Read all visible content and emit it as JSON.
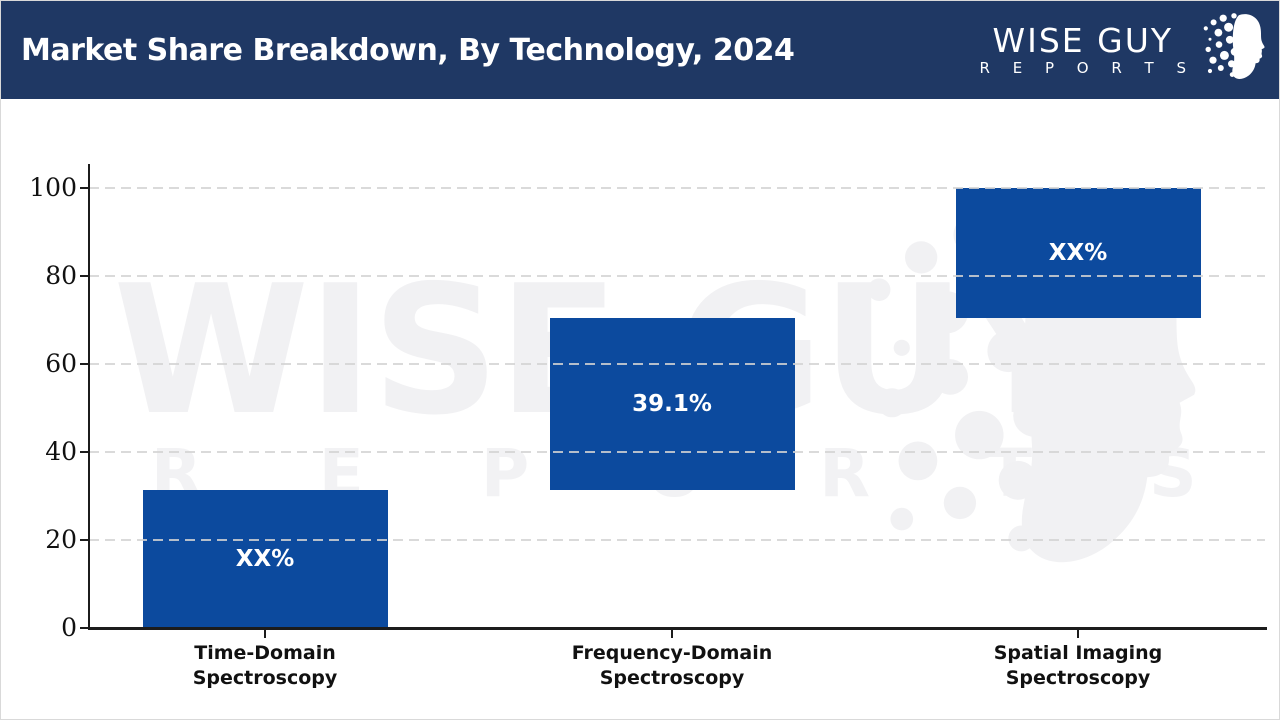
{
  "header": {
    "title": "Market Share Breakdown, By Technology, 2024",
    "bg_color": "#1f3864",
    "logo": {
      "name": "WISE GUY",
      "sub": "R E P O R T S"
    }
  },
  "watermark": {
    "line1": "WISE GUY",
    "line2": "R E P O R T S"
  },
  "chart_data": {
    "type": "bar",
    "subtype": "floating-waterfall",
    "title": "Market Share Breakdown, By Technology, 2024",
    "categories": [
      "Time-Domain\nSpectroscopy",
      "Frequency-Domain\nSpectroscopy",
      "Spatial Imaging\nSpectroscopy"
    ],
    "bars": [
      {
        "category": "Time-Domain Spectroscopy",
        "start": 0,
        "end": 31.3,
        "label": "XX%"
      },
      {
        "category": "Frequency-Domain Spectroscopy",
        "start": 31.3,
        "end": 70.4,
        "label": "39.1%"
      },
      {
        "category": "Spatial Imaging Spectroscopy",
        "start": 70.4,
        "end": 100,
        "label": "XX%"
      }
    ],
    "ylim": [
      0,
      100
    ],
    "yticks": [
      0,
      20,
      40,
      60,
      80,
      100
    ],
    "grid": {
      "horizontal": true,
      "style": "dashed",
      "color": "#d3d3d3",
      "drawn_above_bars": true
    },
    "bar_color": "#0c4a9e",
    "bar_label_color": "#ffffff",
    "axis_color": "#1c1c1c",
    "legend": "none"
  }
}
